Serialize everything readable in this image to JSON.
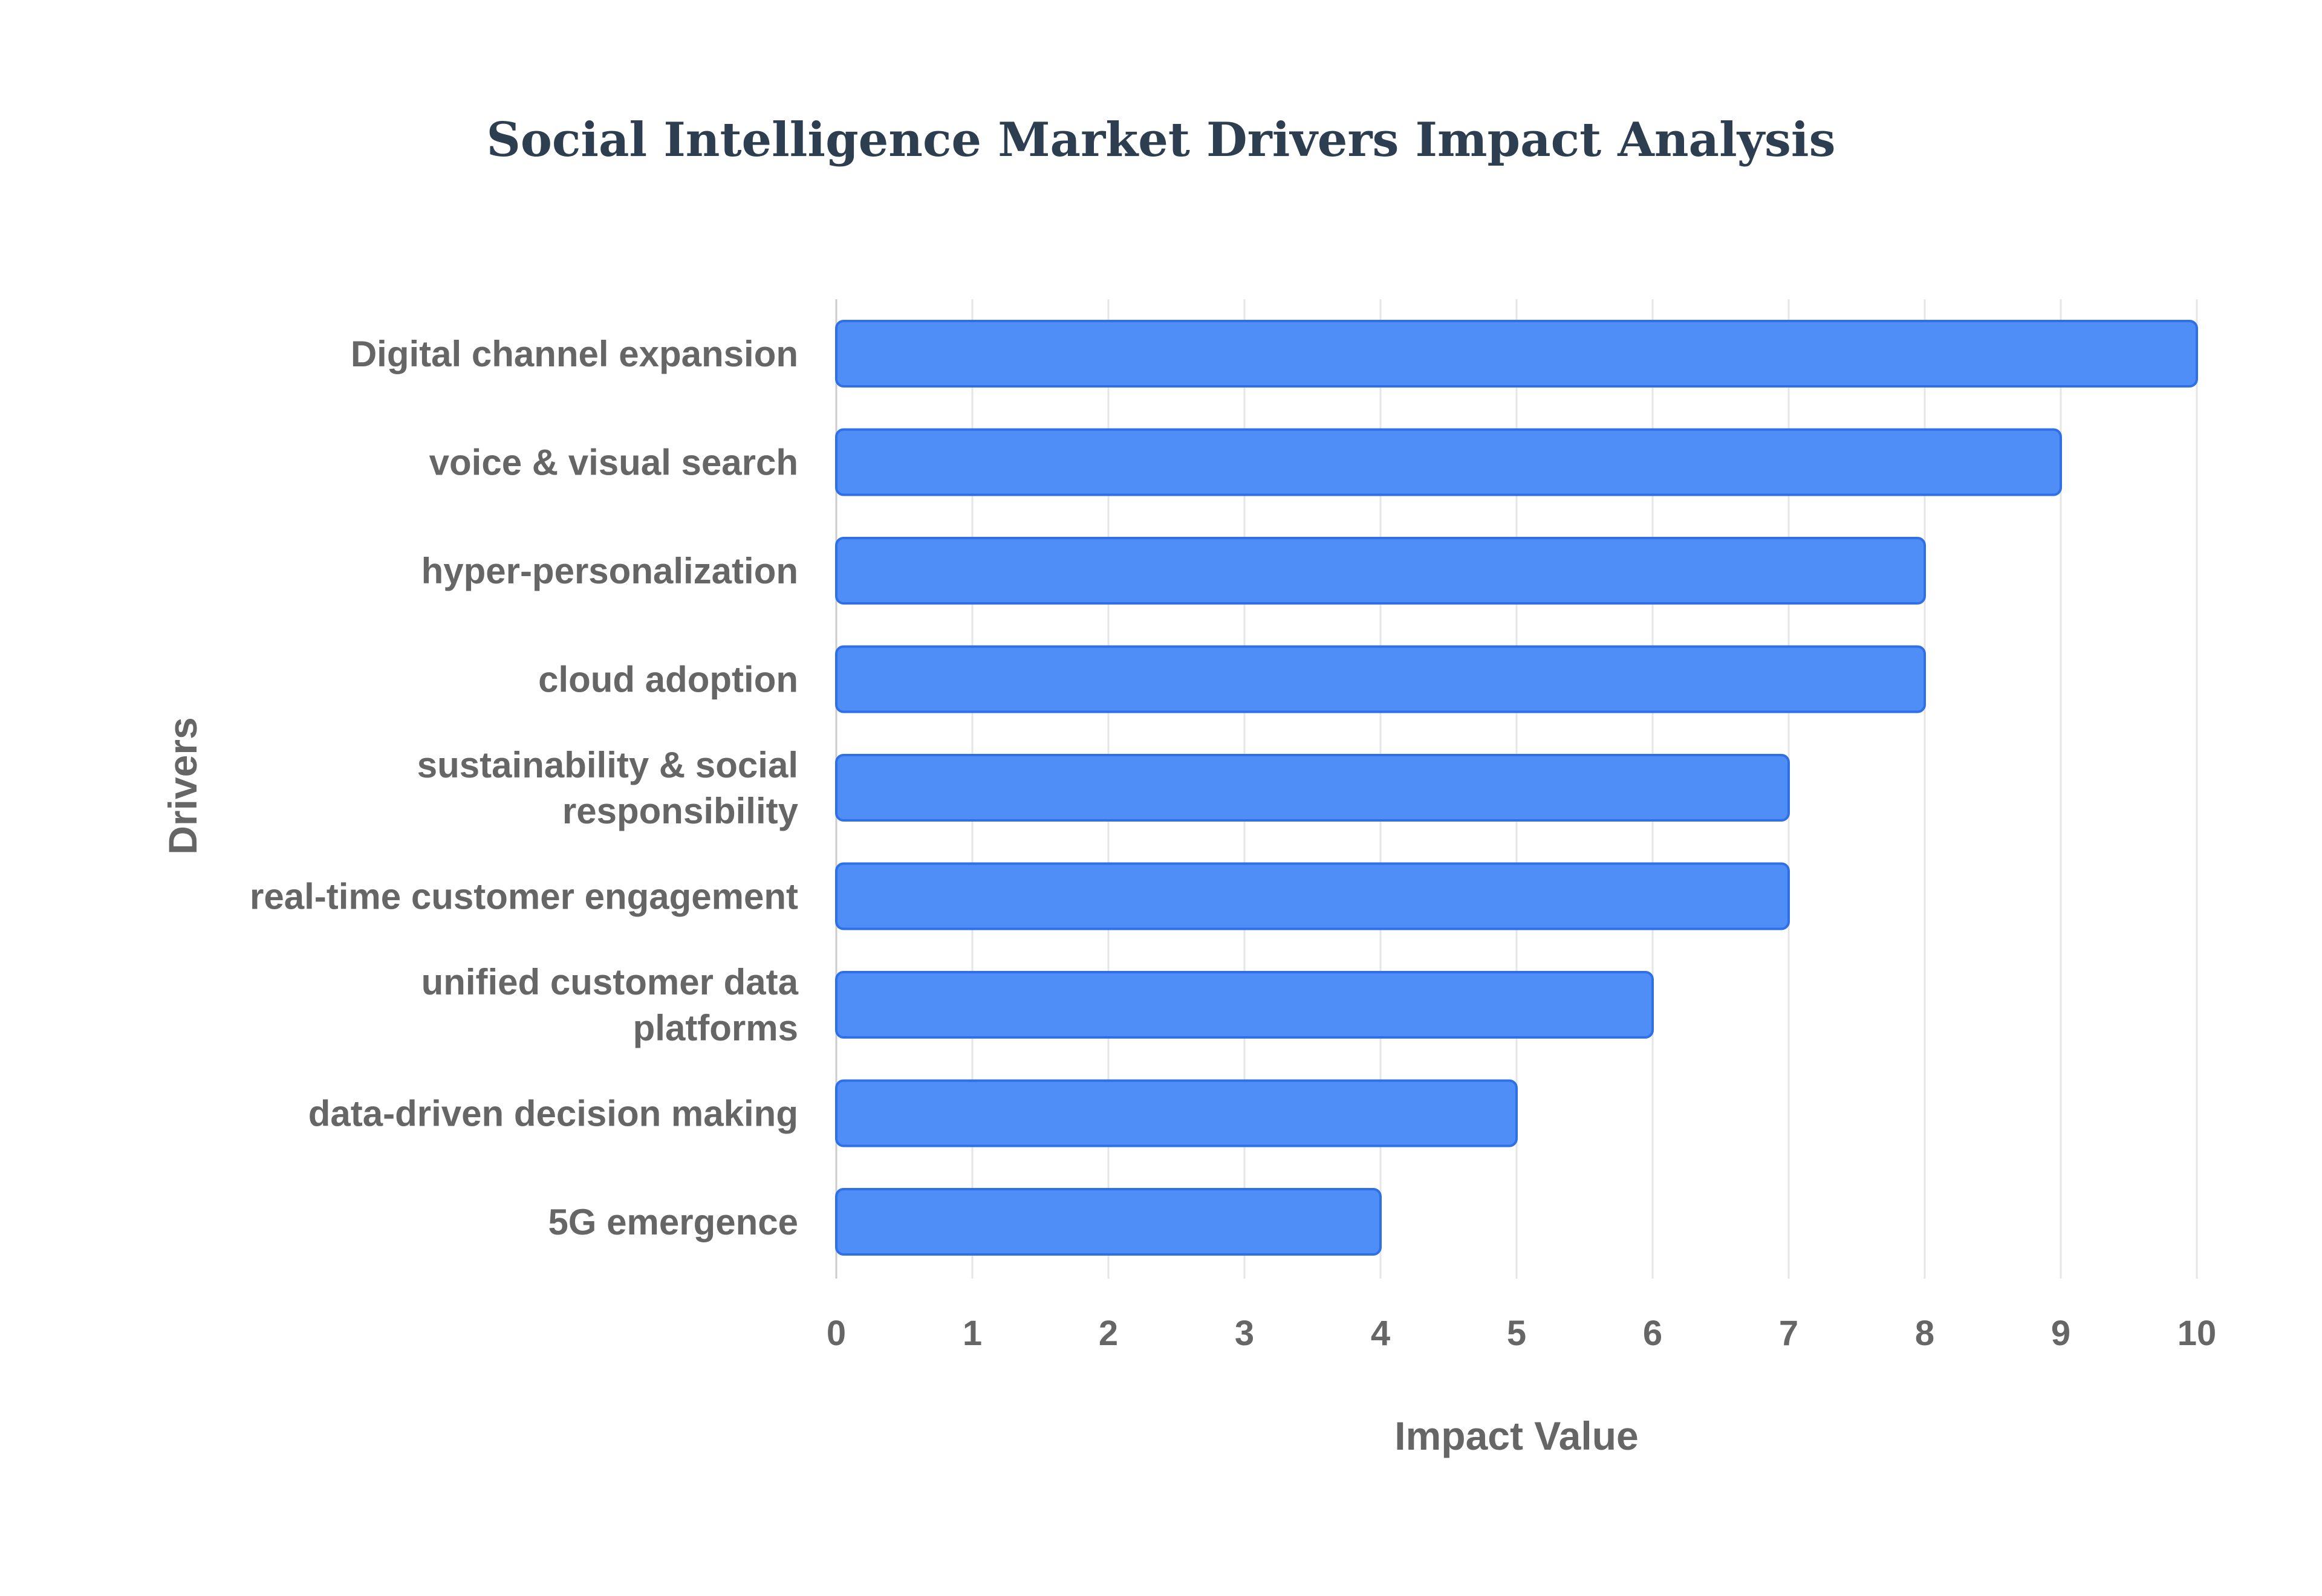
{
  "chart_data": {
    "type": "bar",
    "orientation": "horizontal",
    "title": "Social Intelligence Market Drivers Impact Analysis",
    "xlabel": "Impact Value",
    "ylabel": "Drivers",
    "categories": [
      "Digital channel expansion",
      "voice & visual search",
      "hyper-personalization",
      "cloud adoption",
      "sustainability & social responsibility",
      "real-time customer engagement",
      "unified customer data platforms",
      "data-driven decision making",
      "5G emergence"
    ],
    "category_lines": [
      [
        "Digital channel expansion"
      ],
      [
        "voice & visual search"
      ],
      [
        "hyper-personalization"
      ],
      [
        "cloud adoption"
      ],
      [
        "sustainability & social",
        "responsibility"
      ],
      [
        "real-time customer engagement"
      ],
      [
        "unified customer data",
        "platforms"
      ],
      [
        "data-driven decision making"
      ],
      [
        "5G emergence"
      ]
    ],
    "values": [
      10,
      9,
      8,
      8,
      7,
      7,
      6,
      5,
      4
    ],
    "xlim": [
      0,
      10
    ],
    "ticks": [
      "0",
      "1",
      "2",
      "3",
      "4",
      "5",
      "6",
      "7",
      "8",
      "9",
      "10"
    ],
    "grid": true,
    "legend": "none",
    "colors": {
      "bar_fill": "#4f8ef7",
      "bar_stroke": "#2f6fe8",
      "title": "#2c3e50",
      "labels": "#666666"
    }
  }
}
